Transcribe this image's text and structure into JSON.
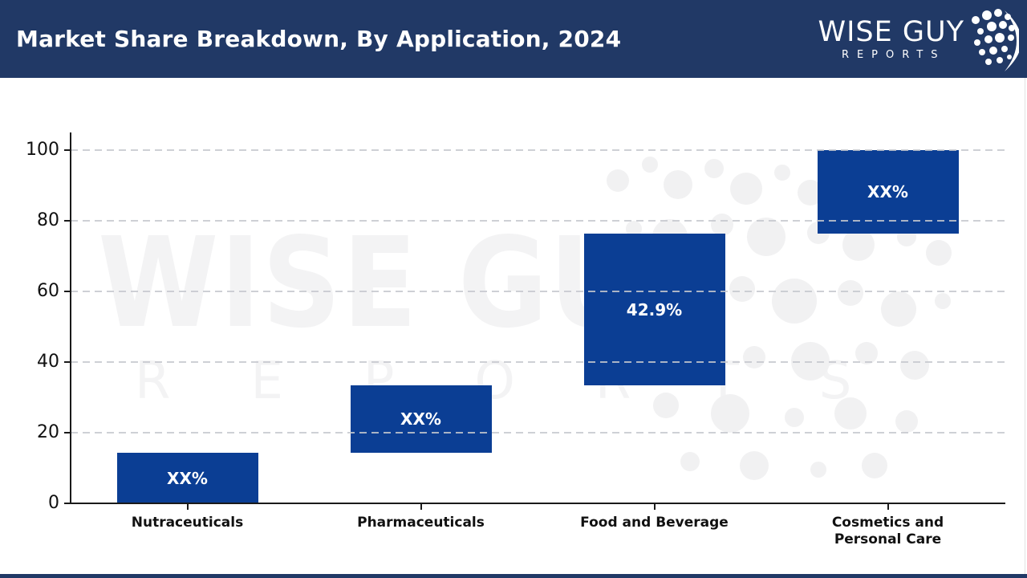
{
  "header": {
    "title": "Market Share Breakdown, By Application, 2024",
    "logo": {
      "line1": "WISE GUY",
      "line2": "REPORTS"
    }
  },
  "watermark": {
    "line1": "WISE GUY",
    "line2": "REPORTS"
  },
  "colors": {
    "header_bg": "#213966",
    "bar": "#0b3e94",
    "axis": "#1a1a1a",
    "grid": "#c8c8ce",
    "bar_label_text": "#ffffff",
    "watermark": "#f3f3f4"
  },
  "chart_data": {
    "type": "bar",
    "subtype": "waterfall",
    "title": "Market Share Breakdown, By Application, 2024",
    "xlabel": "",
    "ylabel": "",
    "ylim": [
      0,
      105
    ],
    "yticks": [
      0,
      20,
      40,
      60,
      80,
      100
    ],
    "grid": "horizontal-dashed",
    "legend": "none",
    "categories": [
      "Nutraceuticals",
      "Pharmaceuticals",
      "Food and Beverage",
      "Cosmetics and Personal Care"
    ],
    "bars": [
      {
        "category": "Nutraceuticals",
        "lines": [
          "Nutraceuticals"
        ],
        "start": 0,
        "end": 14.3,
        "value": 14.3,
        "label": "XX%"
      },
      {
        "category": "Pharmaceuticals",
        "lines": [
          "Pharmaceuticals"
        ],
        "start": 14.3,
        "end": 33.4,
        "value": 19.1,
        "label": "XX%"
      },
      {
        "category": "Food and Beverage",
        "lines": [
          "Food and Beverage"
        ],
        "start": 33.4,
        "end": 76.3,
        "value": 42.9,
        "label": "42.9%"
      },
      {
        "category": "Cosmetics and Personal Care",
        "lines": [
          "Cosmetics and",
          "Personal Care"
        ],
        "start": 76.3,
        "end": 100,
        "value": 23.7,
        "label": "XX%"
      }
    ]
  }
}
